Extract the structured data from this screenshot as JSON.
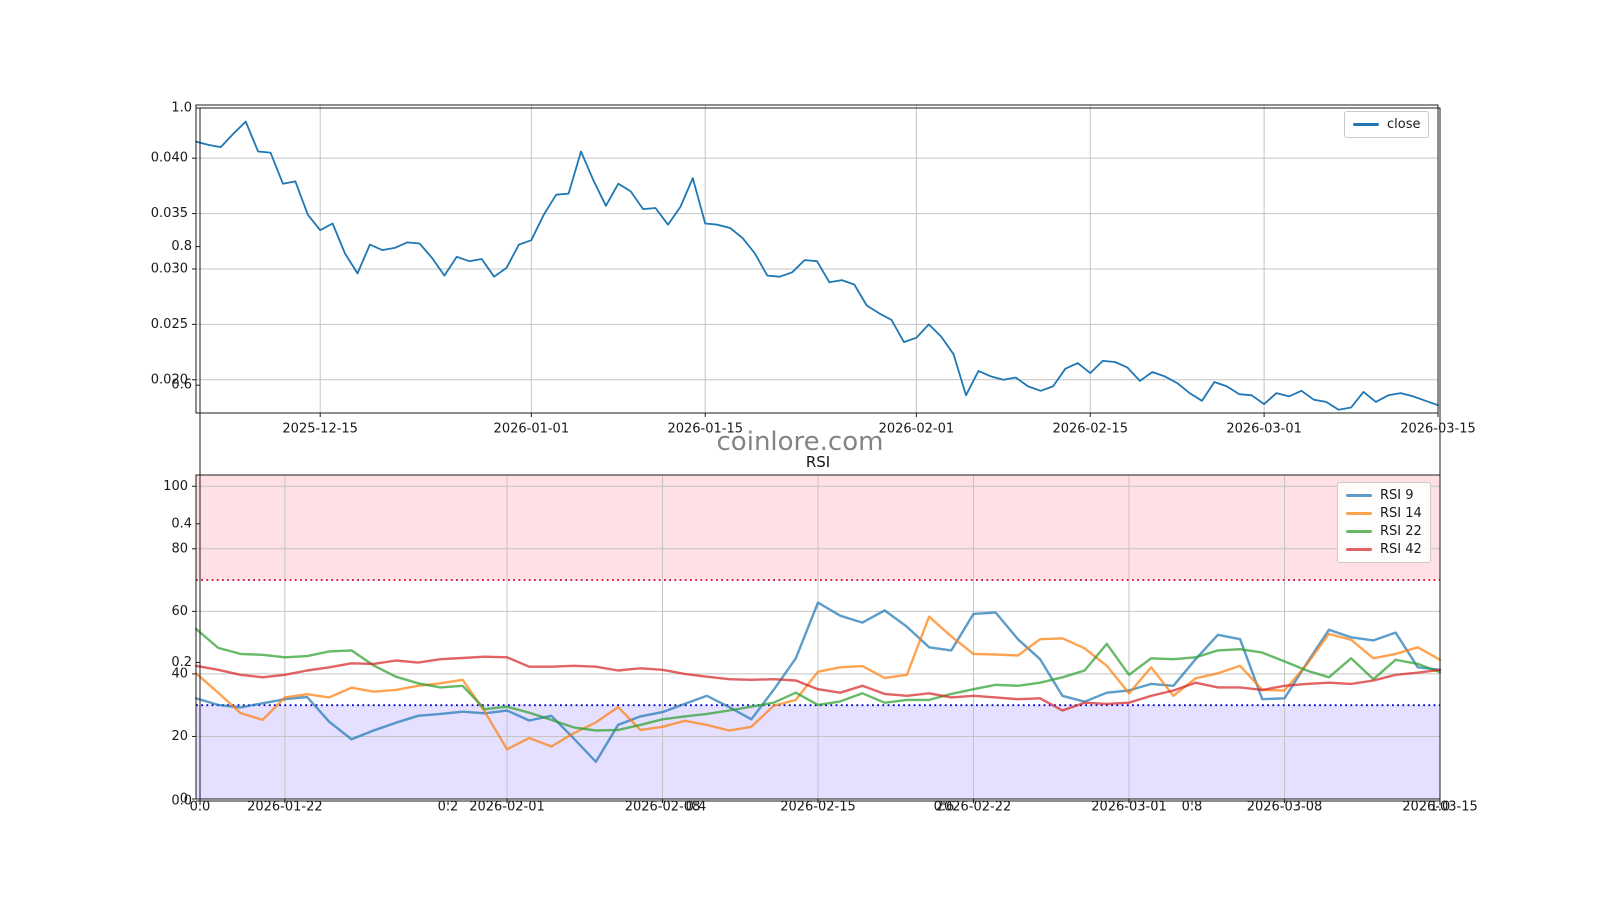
{
  "watermark": "coinlore.com",
  "overlay_axis": {
    "x_ticks": [
      0,
      0.2,
      0.4,
      0.6,
      0.8,
      1
    ],
    "x_tick_labels": [
      "0.0",
      "0.2",
      "0.4",
      "0.6",
      "0.8",
      "1.0"
    ],
    "y_ticks": [
      0,
      0.2,
      0.4,
      0.6,
      0.8,
      1
    ],
    "y_tick_labels": [
      "0.0",
      "0.2",
      "0.4",
      "0.6",
      "0.8",
      "1.0"
    ]
  },
  "chart_data": [
    {
      "type": "line",
      "name": "price-chart",
      "title": "",
      "x_start": "2025-12-05",
      "x_interval_days": 1,
      "x_tick_labels": [
        "2025-12-15",
        "2026-01-01",
        "2026-01-15",
        "2026-02-01",
        "2026-02-15",
        "2026-03-01",
        "2026-03-15"
      ],
      "y_ticks": [
        0.02,
        0.025,
        0.03,
        0.035,
        0.04
      ],
      "y_tick_labels": [
        "0.020",
        "0.025",
        "0.030",
        "0.035",
        "0.040"
      ],
      "ylim": [
        0.017,
        0.0448
      ],
      "grid": true,
      "legend_position": "upper right",
      "series": [
        {
          "name": "close",
          "color": "#1f77b4",
          "width": 1.8,
          "opacity": 1,
          "values": [
            0.0415,
            0.0412,
            0.041,
            0.0422,
            0.0433,
            0.0406,
            0.0405,
            0.0377,
            0.0379,
            0.0349,
            0.0335,
            0.0341,
            0.0314,
            0.0296,
            0.0322,
            0.0317,
            0.0319,
            0.0324,
            0.0323,
            0.031,
            0.0294,
            0.0311,
            0.0307,
            0.0309,
            0.0293,
            0.0301,
            0.0322,
            0.0326,
            0.0349,
            0.0367,
            0.0368,
            0.0406,
            0.038,
            0.0357,
            0.0377,
            0.037,
            0.0354,
            0.0355,
            0.034,
            0.0356,
            0.0382,
            0.0341,
            0.034,
            0.0337,
            0.0328,
            0.0314,
            0.0294,
            0.0293,
            0.0297,
            0.0308,
            0.0307,
            0.0288,
            0.029,
            0.0286,
            0.0267,
            0.026,
            0.0254,
            0.0234,
            0.0238,
            0.025,
            0.0239,
            0.0223,
            0.0186,
            0.0208,
            0.0203,
            0.02,
            0.0202,
            0.0194,
            0.019,
            0.0194,
            0.021,
            0.0215,
            0.0206,
            0.0217,
            0.0216,
            0.0211,
            0.0199,
            0.0207,
            0.0203,
            0.0197,
            0.0188,
            0.0181,
            0.0198,
            0.0194,
            0.0187,
            0.0186,
            0.0178,
            0.0188,
            0.0185,
            0.019,
            0.0182,
            0.018,
            0.0173,
            0.0175,
            0.0189,
            0.018,
            0.0186,
            0.0188,
            0.0185,
            0.0181,
            0.0177
          ]
        }
      ]
    },
    {
      "type": "line",
      "name": "rsi-chart",
      "title": "RSI",
      "x_start": "2026-01-18",
      "x_interval_days": 1,
      "x_tick_labels": [
        "2026-01-22",
        "2026-02-01",
        "2026-02-08",
        "2026-02-15",
        "2026-02-22",
        "2026-03-01",
        "2026-03-08",
        "2026-03-15"
      ],
      "y_ticks": [
        0,
        20,
        40,
        60,
        80,
        100
      ],
      "y_tick_labels": [
        "0",
        "20",
        "40",
        "60",
        "80",
        "100"
      ],
      "ylim": [
        0,
        103.6
      ],
      "grid": true,
      "legend_position": "upper right",
      "bands": [
        {
          "from": 70,
          "to": 103.6,
          "color": "rgba(255,0,40,0.12)",
          "name": "overbought-band"
        },
        {
          "from": 0,
          "to": 30,
          "color": "rgba(40,0,255,0.12)",
          "name": "oversold-band"
        }
      ],
      "ref_lines": [
        {
          "value": 70,
          "color": "#dc143c",
          "name": "overbought-threshold"
        },
        {
          "value": 30,
          "color": "#0000cc",
          "name": "oversold-threshold"
        }
      ],
      "series": [
        {
          "name": "RSI 9",
          "color": "#1f77b4",
          "width": 2.4,
          "opacity": 0.72,
          "values": [
            32.2,
            30.1,
            29.3,
            30.6,
            31.9,
            32.6,
            24.7,
            19.1,
            21.9,
            24.4,
            26.6,
            27.2,
            27.9,
            27.4,
            28.3,
            25.1,
            26.6,
            19.4,
            11.9,
            23.7,
            26.4,
            27.8,
            30.4,
            33.0,
            29.4,
            25.5,
            34.9,
            45.0,
            62.8,
            58.6,
            56.4,
            60.3,
            55.1,
            48.5,
            47.5,
            59.2,
            59.6,
            51.1,
            44.7,
            33.0,
            31.1,
            34.0,
            34.7,
            36.8,
            36.2,
            44.7,
            52.5,
            51.1,
            31.9,
            32.2,
            43.4,
            54.1,
            51.7,
            50.7,
            53.2,
            42.1,
            41.3
          ]
        },
        {
          "name": "RSI 14",
          "color": "#ff7f0e",
          "width": 2.4,
          "opacity": 0.72,
          "values": [
            40.2,
            34.0,
            27.5,
            25.3,
            32.5,
            33.5,
            32.5,
            35.6,
            34.3,
            34.9,
            36.2,
            37.0,
            38.1,
            27.9,
            15.9,
            19.5,
            16.8,
            21.0,
            24.5,
            29.4,
            22.1,
            23.1,
            25.0,
            23.7,
            21.9,
            23.1,
            29.8,
            31.7,
            40.7,
            42.1,
            42.5,
            38.7,
            39.7,
            58.3,
            52.0,
            46.4,
            46.2,
            45.9,
            51.1,
            51.4,
            48.2,
            42.6,
            33.8,
            42.1,
            33.0,
            38.6,
            40.2,
            42.6,
            34.9,
            34.7,
            43.0,
            52.8,
            50.9,
            45.0,
            46.4,
            48.5,
            44.5
          ]
        },
        {
          "name": "RSI 22",
          "color": "#2ca02c",
          "width": 2.4,
          "opacity": 0.72,
          "values": [
            54.4,
            48.3,
            46.4,
            46.1,
            45.3,
            45.7,
            47.2,
            47.5,
            42.7,
            39.1,
            37.0,
            35.7,
            36.2,
            28.7,
            29.5,
            27.6,
            25.3,
            22.9,
            21.9,
            22.1,
            23.7,
            25.5,
            26.4,
            27.2,
            28.3,
            29.5,
            30.8,
            34.0,
            30.1,
            31.2,
            33.8,
            30.8,
            31.7,
            31.7,
            33.6,
            35.1,
            36.5,
            36.2,
            37.2,
            38.9,
            41.1,
            49.6,
            39.7,
            45.0,
            44.7,
            45.3,
            47.5,
            47.9,
            46.8,
            44.0,
            41.1,
            38.9,
            45.0,
            38.3,
            44.5,
            43.2,
            40.5
          ]
        },
        {
          "name": "RSI 42",
          "color": "#d62728",
          "width": 2.4,
          "opacity": 0.72,
          "values": [
            42.6,
            41.3,
            39.7,
            38.9,
            39.7,
            41.1,
            42.1,
            43.4,
            43.2,
            44.3,
            43.6,
            44.7,
            45.1,
            45.5,
            45.3,
            42.3,
            42.3,
            42.6,
            42.3,
            41.1,
            41.8,
            41.3,
            40.0,
            39.1,
            38.3,
            38.1,
            38.3,
            37.9,
            35.1,
            34.0,
            36.2,
            33.6,
            33.0,
            33.8,
            32.5,
            33.0,
            32.5,
            31.9,
            32.2,
            28.3,
            30.8,
            30.4,
            30.8,
            33.0,
            34.7,
            37.2,
            35.7,
            35.7,
            34.9,
            36.2,
            36.8,
            37.2,
            36.8,
            37.9,
            39.7,
            40.4,
            41.3
          ]
        }
      ]
    }
  ]
}
